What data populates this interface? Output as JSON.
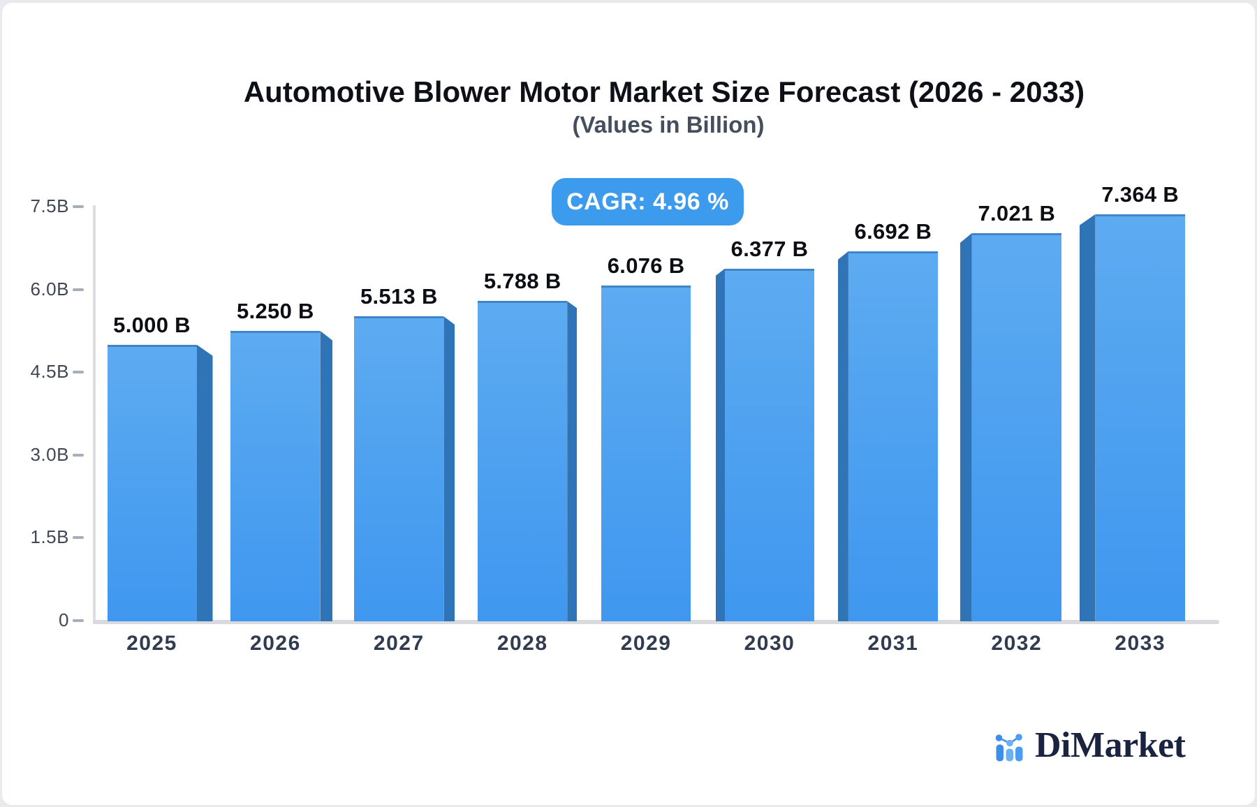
{
  "header": {
    "title": "Automotive Blower Motor Market Size Forecast (2026 - 2033)",
    "subtitle": "(Values in Billion)"
  },
  "badge": {
    "label": "CAGR: 4.96 %"
  },
  "chart_data": {
    "type": "bar",
    "title": "Automotive Blower Motor Market Size Forecast (2026 - 2033)",
    "subtitle": "(Values in Billion)",
    "cagr_percent": 4.96,
    "categories": [
      "2025",
      "2026",
      "2027",
      "2028",
      "2029",
      "2030",
      "2031",
      "2032",
      "2033"
    ],
    "values": [
      5.0,
      5.25,
      5.513,
      5.788,
      6.076,
      6.377,
      6.692,
      7.021,
      7.364
    ],
    "value_labels": [
      "5.000 B",
      "5.250 B",
      "5.513 B",
      "5.788 B",
      "6.076 B",
      "6.377 B",
      "6.692 B",
      "7.021 B",
      "7.364 B"
    ],
    "xlabel": "",
    "ylabel": "",
    "ylim": [
      0,
      7.5
    ],
    "grid": "off",
    "legend": "none",
    "yticks": [
      {
        "label": "7.5B",
        "value": 7.5
      },
      {
        "label": "6.0B",
        "value": 6.0
      },
      {
        "label": "4.5B",
        "value": 4.5
      },
      {
        "label": "3.0B",
        "value": 3.0
      },
      {
        "label": "1.5B",
        "value": 1.5
      },
      {
        "label": "0",
        "value": 0
      }
    ]
  },
  "branding": {
    "name": "DiMarket"
  },
  "colors": {
    "accent_blue": "#3d9bee",
    "bar_face_top": "#5dabf1",
    "bar_face_bottom": "#3f97ef",
    "bar_side": "#2e74b7",
    "axis_gray": "#d8dade",
    "title_text": "#0d1117",
    "subtitle_text": "#454e5d",
    "tick_text": "#3f4654",
    "xlabel_text": "#323c4f",
    "logo_text": "#1a2440",
    "logo_blue_dark": "#3b8fe8",
    "logo_blue_light": "#6cb0f4",
    "logo_blue_mid": "#4a9df0"
  }
}
